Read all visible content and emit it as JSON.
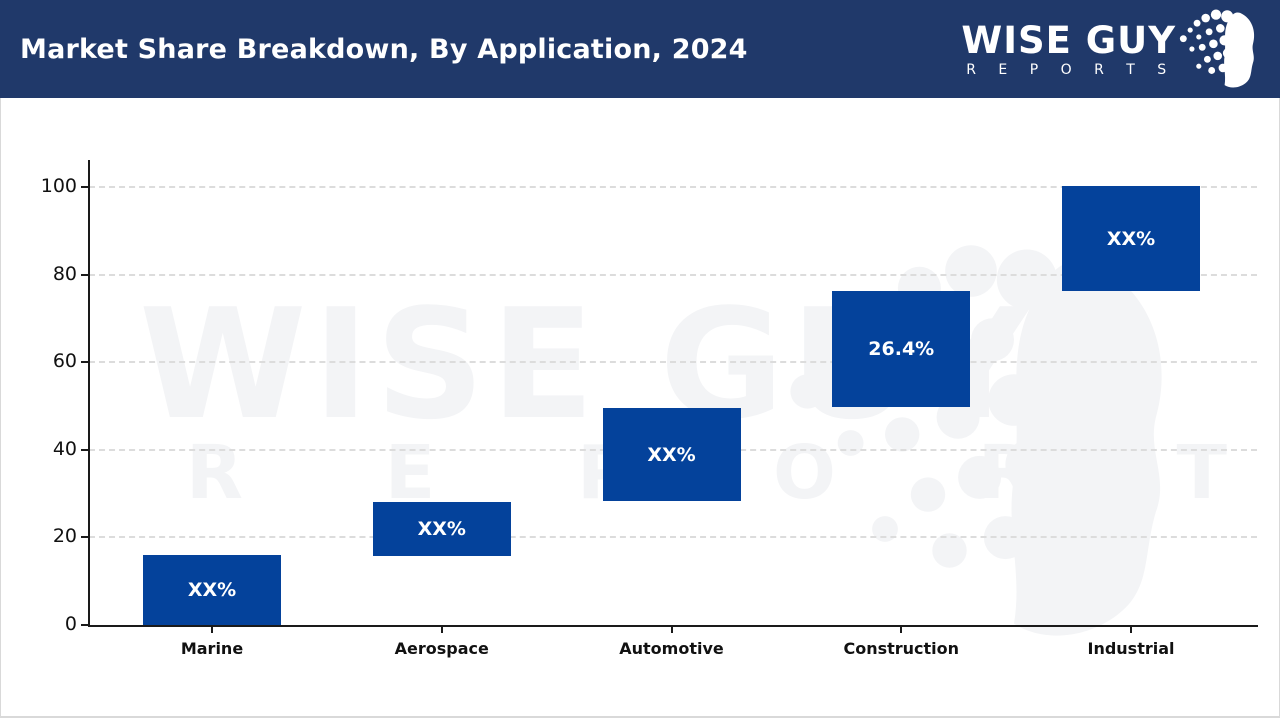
{
  "header": {
    "title": "Market Share Breakdown, By Application, 2024",
    "bg_color": "#20396a",
    "logo": {
      "line1": "WISE GUY",
      "line2": "R E P O R T S"
    }
  },
  "watermark": {
    "line1": "WISE GUY",
    "line2": "R E P O R T S"
  },
  "chart_data": {
    "type": "bar",
    "subtype": "waterfall-floating-bars",
    "title": "Market Share Breakdown, By Application, 2024",
    "categories": [
      "Marine",
      "Aerospace",
      "Automotive",
      "Construction",
      "Industrial"
    ],
    "segments": [
      {
        "category": "Marine",
        "base": 0.0,
        "top": 16.0,
        "label": "XX%"
      },
      {
        "category": "Aerospace",
        "base": 15.8,
        "top": 28.1,
        "label": "XX%"
      },
      {
        "category": "Automotive",
        "base": 28.3,
        "top": 49.5,
        "label": "XX%"
      },
      {
        "category": "Construction",
        "base": 49.8,
        "top": 76.2,
        "label": "26.4%"
      },
      {
        "category": "Industrial",
        "base": 76.2,
        "top": 100.2,
        "label": "XX%"
      }
    ],
    "highlighted_value": "26.4%",
    "yticks": [
      0,
      20,
      40,
      60,
      80,
      100
    ],
    "ylim": [
      0,
      105
    ],
    "xlabel": "",
    "ylabel": "",
    "bar_color": "#04429b",
    "grid": "horizontal-dashed",
    "legend": "none"
  }
}
